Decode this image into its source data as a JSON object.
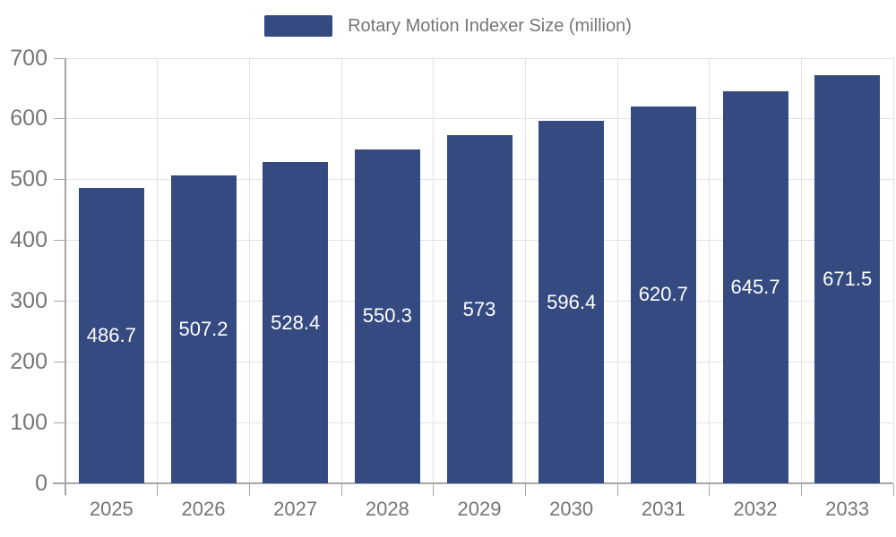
{
  "legend": {
    "label": "Rotary Motion Indexer Size (million)"
  },
  "chart_data": {
    "type": "bar",
    "title": "Rotary Motion Indexer Size (million)",
    "categories": [
      "2025",
      "2026",
      "2027",
      "2028",
      "2029",
      "2030",
      "2031",
      "2032",
      "2033"
    ],
    "series": [
      {
        "name": "Rotary Motion Indexer Size (million)",
        "values": [
          486.7,
          507.2,
          528.4,
          550.3,
          573,
          596.4,
          620.7,
          645.7,
          671.5
        ]
      }
    ],
    "xlabel": "",
    "ylabel": "",
    "ylim": [
      0,
      700
    ],
    "ytick_interval": 100,
    "ytick_labels": [
      "0",
      "100",
      "200",
      "300",
      "400",
      "500",
      "600",
      "700"
    ],
    "grid": true,
    "legend_position": "top-center",
    "bar_color": "#354a80",
    "bar_label_color": "#ffffff",
    "axis_color": "#a6a6a6",
    "grid_color": "#e2e2e2",
    "tick_label_color": "#757575"
  }
}
